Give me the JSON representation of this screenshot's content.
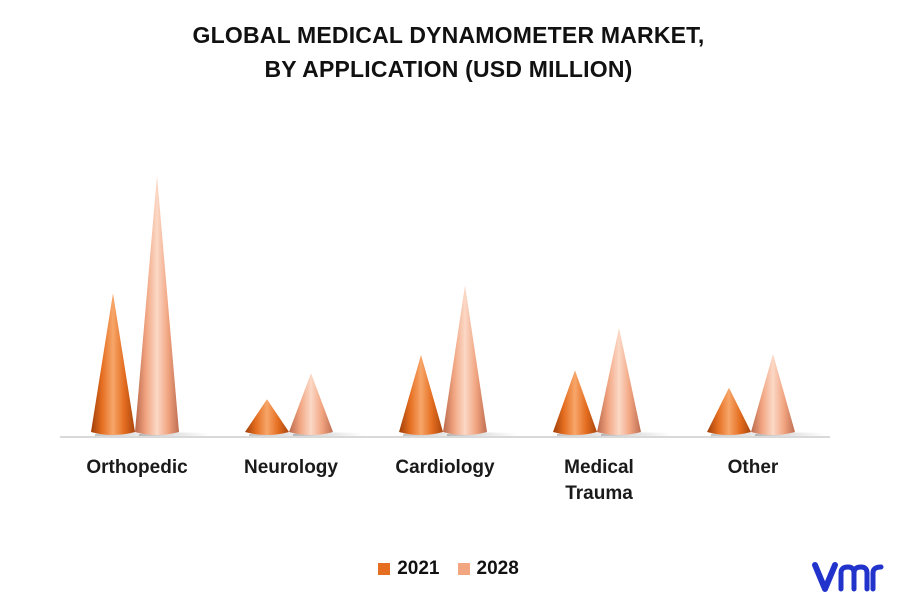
{
  "chart_data": {
    "type": "bar",
    "title_lines": [
      "GLOBAL MEDICAL DYNAMOMETER MARKET,",
      "BY APPLICATION (USD MILLION)"
    ],
    "categories": [
      [
        "Orthopedic"
      ],
      [
        "Neurology"
      ],
      [
        "Cardiology"
      ],
      [
        "Medical",
        "Trauma"
      ],
      [
        "Other"
      ]
    ],
    "series": [
      {
        "name": "2021",
        "values": [
          146,
          36,
          82,
          66,
          48
        ],
        "color": "#E56E20"
      },
      {
        "name": "2028",
        "values": [
          268,
          63,
          154,
          110,
          83
        ],
        "color": "#F2A581"
      }
    ],
    "ylim": [
      0,
      280
    ],
    "grid": false,
    "legend_position": "bottom",
    "shape": "cone"
  },
  "logo": {
    "icon": "vmr-logo-icon",
    "color": "#2233CC"
  }
}
